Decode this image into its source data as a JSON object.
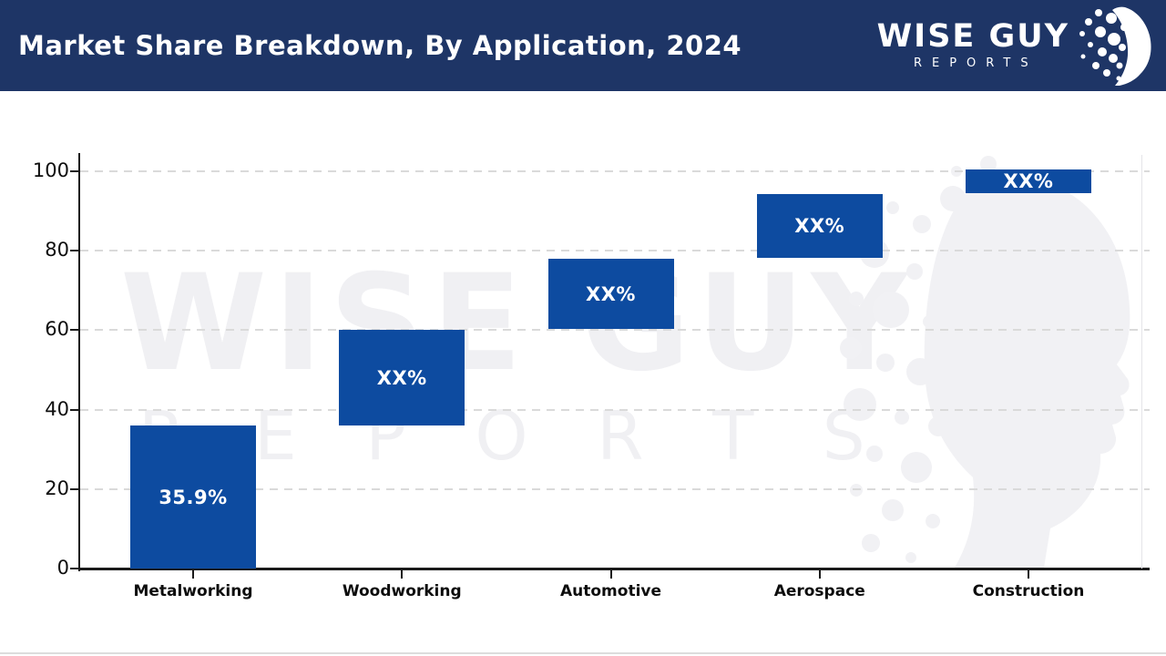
{
  "header": {
    "title": "Market Share Breakdown, By Application, 2024",
    "logo": {
      "primary": "WISE GUY",
      "secondary": "REPORTS",
      "icon": "wiseguy-face-icon"
    }
  },
  "watermark": {
    "primary": "WISE GUY",
    "secondary": "R E P O R T S",
    "icon": "wiseguy-face-watermark-icon"
  },
  "colors": {
    "header_bg": "#1e3566",
    "bar": "#0d4ba0",
    "bar_label": "#ffffff",
    "grid": "#dadada",
    "axis": "#1a1a1a",
    "watermark": "#f0f0f3"
  },
  "chart_data": {
    "type": "bar",
    "subtype": "waterfall",
    "title": "Market Share Breakdown, By Application, 2024",
    "categories": [
      "Metalworking",
      "Woodworking",
      "Automotive",
      "Aerospace",
      "Construction"
    ],
    "bars": [
      {
        "category": "Metalworking",
        "start": 0,
        "end": 35.9,
        "value_label": "35.9%"
      },
      {
        "category": "Woodworking",
        "start": 36,
        "end": 60,
        "value_label": "XX%"
      },
      {
        "category": "Automotive",
        "start": 60.3,
        "end": 77.9,
        "value_label": "XX%"
      },
      {
        "category": "Aerospace",
        "start": 78.2,
        "end": 94.3,
        "value_label": "XX%"
      },
      {
        "category": "Construction",
        "start": 94.5,
        "end": 100.5,
        "value_label": "XX%"
      }
    ],
    "xlabel": "",
    "ylabel": "",
    "ylim": [
      0,
      105
    ],
    "yticks": [
      0,
      20,
      40,
      60,
      80,
      100
    ],
    "grid": "horizontal-dashed",
    "legend": false
  }
}
